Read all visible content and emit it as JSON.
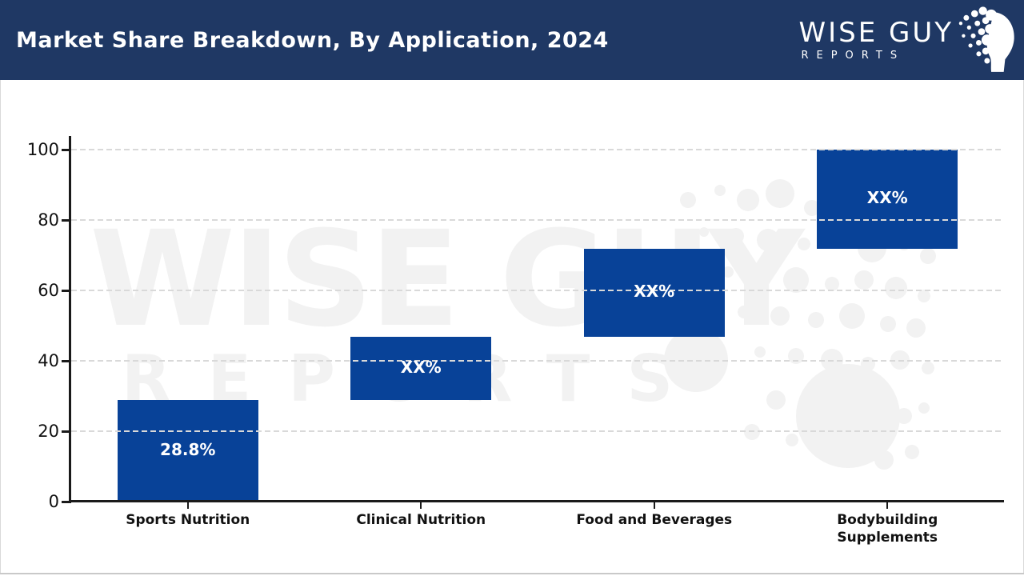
{
  "header": {
    "title": "Market Share Breakdown, By Application, 2024",
    "bg_color": "#1f3864",
    "logo": {
      "main": "WISE GUY",
      "sub": "REPORTS"
    }
  },
  "watermark": {
    "line1": "WISE GUY",
    "line2": "REPORTS"
  },
  "chart_data": {
    "type": "bar",
    "subtype": "waterfall",
    "title": "Market Share Breakdown, By Application, 2024",
    "categories": [
      "Sports Nutrition",
      "Clinical Nutrition",
      "Food and Beverages",
      "Bodybuilding\nSupplements"
    ],
    "series": [
      {
        "name": "Market Share",
        "segments": [
          {
            "category": "Sports Nutrition",
            "start": 0,
            "end": 28.8,
            "label": "28.8%"
          },
          {
            "category": "Clinical Nutrition",
            "start": 28.8,
            "end": 46.8,
            "label": "XX%"
          },
          {
            "category": "Food and Beverages",
            "start": 46.8,
            "end": 71.9,
            "label": "XX%"
          },
          {
            "category": "Bodybuilding Supplements",
            "start": 71.9,
            "end": 100,
            "label": "XX%"
          }
        ]
      }
    ],
    "ylim": [
      0,
      100
    ],
    "yticks": [
      0,
      20,
      40,
      60,
      80,
      100
    ],
    "grid": "horizontal-dashed",
    "legend": "none",
    "bar_color": "#084298",
    "bar_label_color": "#ffffff",
    "axis_color": "#1a1a1a",
    "grid_color": "#d9d9d9"
  }
}
